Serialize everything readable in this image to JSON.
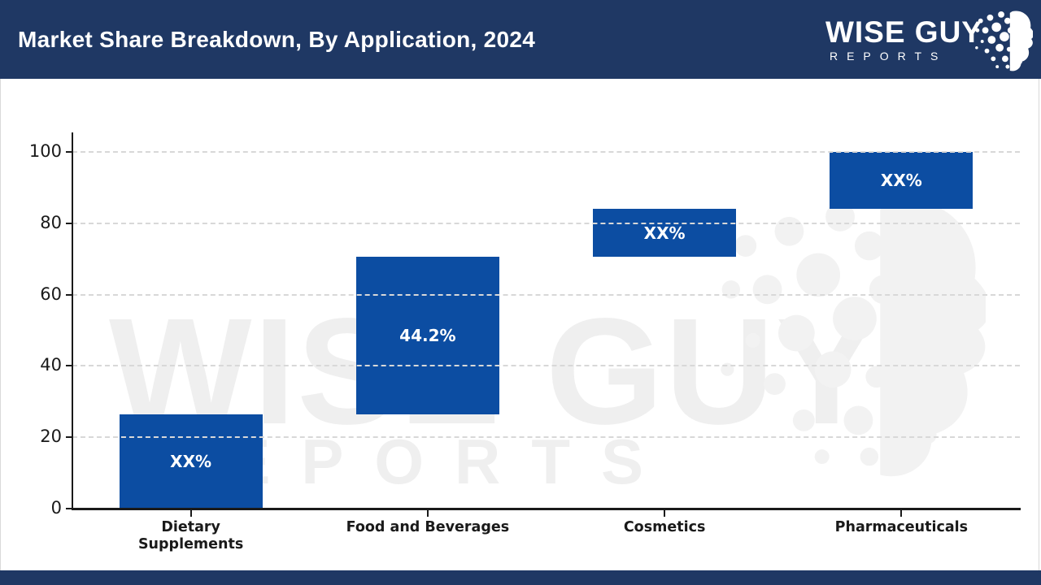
{
  "header": {
    "title": "Market Share Breakdown, By Application, 2024",
    "logo": {
      "wordmark": "WISE GUY",
      "subtext": "REPORTS"
    }
  },
  "watermark": {
    "wordmark": "WISE GUY",
    "subtext": "REPORTS"
  },
  "chart_data": {
    "type": "bar",
    "variant": "floating-segment-waterfall",
    "title": "Market Share Breakdown, By Application, 2024",
    "unit": "percent",
    "legend": "none",
    "categories": [
      "Dietary Supplements",
      "Food and Beverages",
      "Cosmetics",
      "Pharmaceuticals"
    ],
    "category_lines": [
      [
        "Dietary",
        "Supplements"
      ],
      [
        "Food and Beverages"
      ],
      [
        "Cosmetics"
      ],
      [
        "Pharmaceuticals"
      ]
    ],
    "segments": [
      {
        "category": "Dietary Supplements",
        "start": 0,
        "end": 26.4,
        "height": 26.4,
        "label": "XX%"
      },
      {
        "category": "Food and Beverages",
        "start": 26.4,
        "end": 70.6,
        "height": 44.2,
        "label": "44.2%"
      },
      {
        "category": "Cosmetics",
        "start": 70.6,
        "end": 84.0,
        "height": 13.4,
        "label": "XX%"
      },
      {
        "category": "Pharmaceuticals",
        "start": 84.0,
        "end": 100.0,
        "height": 16.0,
        "label": "XX%"
      }
    ],
    "axes": {
      "y_ticks": [
        0,
        20,
        40,
        60,
        80,
        100
      ],
      "ylim": [
        0,
        105
      ],
      "xlabel": "",
      "ylabel": "",
      "grid": "dashed-horizontal"
    }
  },
  "colors": {
    "navy": "#1F3864",
    "bar_blue": "#0C4DA2",
    "grid_gray": "#D8D8D8",
    "axis_black": "#1A1A1A",
    "watermark_gray": "#EFEFEF",
    "watermark_face": "#F2F2F2"
  }
}
